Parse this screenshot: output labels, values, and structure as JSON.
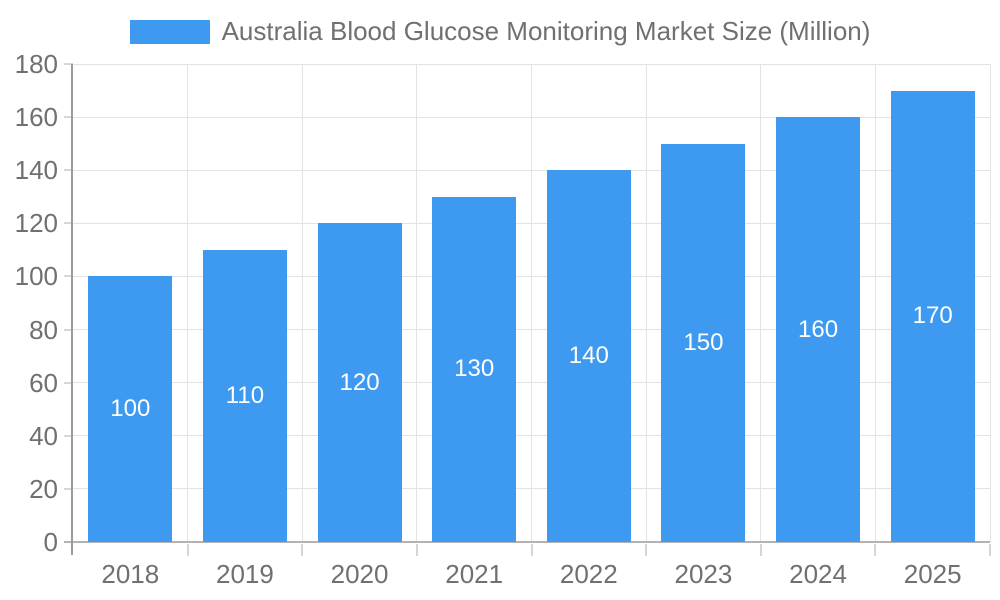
{
  "legend": {
    "label": "Australia Blood Glucose Monitoring Market Size (Million)",
    "swatch_color": "#3D9AF0"
  },
  "colors": {
    "bar": "#3D9AF0",
    "bar_label": "#FFFFFF",
    "grid": "#E3E3E3",
    "axis_x": "#B3B3B3",
    "axis_y": "#9B9B9B",
    "tick": "#D6D6D6",
    "text": "#707070",
    "background": "#FFFFFF"
  },
  "chart_data": {
    "type": "bar",
    "title": "Australia Blood Glucose Monitoring Market Size (Million)",
    "categories": [
      "2018",
      "2019",
      "2020",
      "2021",
      "2022",
      "2023",
      "2024",
      "2025"
    ],
    "series": [
      {
        "name": "Australia Blood Glucose Monitoring Market Size (Million)",
        "values": [
          100,
          110,
          120,
          130,
          140,
          150,
          160,
          170
        ]
      }
    ],
    "bar_labels": [
      "100",
      "110",
      "120",
      "130",
      "140",
      "150",
      "160",
      "170"
    ],
    "xlabel": "",
    "ylabel": "",
    "ylim": [
      0,
      180
    ],
    "ytick_step": 20,
    "ytick_labels": [
      "0",
      "20",
      "40",
      "60",
      "80",
      "100",
      "120",
      "140",
      "160",
      "180"
    ],
    "grid": true,
    "legend_position": "top-center",
    "bar_label_position": "inside-middle"
  }
}
